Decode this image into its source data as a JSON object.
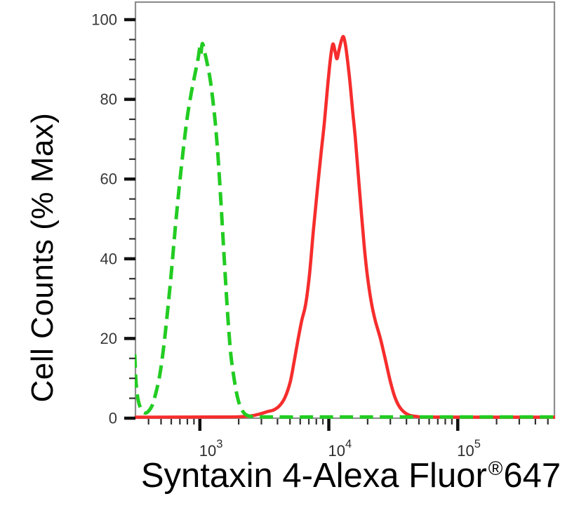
{
  "figure": {
    "background_color": "#ffffff",
    "frame_color": "#8d8d8d",
    "major_tick_color": "#101010",
    "minor_tick_color": "#303030",
    "tick_label_color": "#383838",
    "title_color": "#000000"
  },
  "chart_data": {
    "type": "line",
    "subtype": "flow-cytometry-histogram-overlay",
    "title": "",
    "xlabel": "Syntaxin 4-Alexa Fluor®647",
    "xlabel_parts": {
      "main": "Syntaxin 4-Alexa Fluor",
      "registered": "®",
      "suffix": "647"
    },
    "ylabel": "Cell Counts (% Max)",
    "x_scale": "log10",
    "xlim_log10": [
      2.495,
      5.755
    ],
    "ylim": [
      0,
      100
    ],
    "grid": false,
    "legend": "none",
    "x_major_ticks": [
      {
        "log10": 3,
        "base": "10",
        "exponent": "3"
      },
      {
        "log10": 4,
        "base": "10",
        "exponent": "4"
      },
      {
        "log10": 5,
        "base": "10",
        "exponent": "5"
      }
    ],
    "y_major_ticks": [
      {
        "value": 0,
        "label": "0"
      },
      {
        "value": 20,
        "label": "20"
      },
      {
        "value": 40,
        "label": "40"
      },
      {
        "value": 60,
        "label": "60"
      },
      {
        "value": 80,
        "label": "80"
      },
      {
        "value": 100,
        "label": "100"
      }
    ],
    "y_minor_step": 5,
    "series": [
      {
        "id": "green-dashed-histogram",
        "color": "#22cc22",
        "line_style": "dashed",
        "line_width": 5,
        "peak_log10x": 3.02,
        "peak_percent": 94,
        "points_log10x_percent": [
          [
            2.495,
            16
          ],
          [
            2.505,
            9
          ],
          [
            2.52,
            4.8
          ],
          [
            2.545,
            2.2
          ],
          [
            2.575,
            1.3
          ],
          [
            2.6,
            1.7
          ],
          [
            2.63,
            3.2
          ],
          [
            2.66,
            6.5
          ],
          [
            2.69,
            11
          ],
          [
            2.72,
            18
          ],
          [
            2.75,
            27
          ],
          [
            2.78,
            37
          ],
          [
            2.81,
            48
          ],
          [
            2.84,
            58
          ],
          [
            2.87,
            67
          ],
          [
            2.9,
            75
          ],
          [
            2.93,
            81
          ],
          [
            2.96,
            86
          ],
          [
            2.985,
            90
          ],
          [
            3.0,
            93
          ],
          [
            3.008,
            91.5
          ],
          [
            3.02,
            94
          ],
          [
            3.04,
            91.5
          ],
          [
            3.06,
            88.5
          ],
          [
            3.08,
            85
          ],
          [
            3.1,
            80
          ],
          [
            3.12,
            74
          ],
          [
            3.14,
            66
          ],
          [
            3.16,
            56
          ],
          [
            3.18,
            45
          ],
          [
            3.2,
            34
          ],
          [
            3.22,
            24
          ],
          [
            3.24,
            16
          ],
          [
            3.265,
            10
          ],
          [
            3.29,
            5.5
          ],
          [
            3.315,
            2.8
          ],
          [
            3.345,
            1.2
          ],
          [
            3.38,
            0.55
          ],
          [
            3.43,
            0.35
          ],
          [
            3.6,
            0.3
          ],
          [
            4.0,
            0.3
          ],
          [
            4.4,
            0.3
          ],
          [
            4.8,
            0.3
          ],
          [
            5.2,
            0.3
          ],
          [
            5.755,
            0.3
          ]
        ]
      },
      {
        "id": "red-solid-histogram",
        "color": "#f62d2d",
        "line_style": "solid",
        "line_width": 4.6,
        "peak_log10x": 4.114,
        "peak_percent": 95.7,
        "points_log10x_percent": [
          [
            2.495,
            0.25
          ],
          [
            2.9,
            0.28
          ],
          [
            3.1,
            0.3
          ],
          [
            3.3,
            0.35
          ],
          [
            3.4,
            0.6
          ],
          [
            3.47,
            1.1
          ],
          [
            3.53,
            1.7
          ],
          [
            3.575,
            2.1
          ],
          [
            3.62,
            3.2
          ],
          [
            3.66,
            5.2
          ],
          [
            3.7,
            9
          ],
          [
            3.73,
            14
          ],
          [
            3.76,
            19.5
          ],
          [
            3.79,
            24.5
          ],
          [
            3.82,
            28.5
          ],
          [
            3.85,
            36
          ],
          [
            3.88,
            47
          ],
          [
            3.91,
            57
          ],
          [
            3.94,
            66.5
          ],
          [
            3.965,
            74
          ],
          [
            3.99,
            83
          ],
          [
            4.01,
            89.5
          ],
          [
            4.026,
            93.2
          ],
          [
            4.036,
            93.8
          ],
          [
            4.05,
            91.8
          ],
          [
            4.063,
            90.2
          ],
          [
            4.078,
            92.2
          ],
          [
            4.098,
            94.8
          ],
          [
            4.114,
            95.7
          ],
          [
            4.13,
            93.5
          ],
          [
            4.148,
            89
          ],
          [
            4.165,
            84
          ],
          [
            4.185,
            77
          ],
          [
            4.205,
            70.5
          ],
          [
            4.225,
            62.5
          ],
          [
            4.25,
            52.5
          ],
          [
            4.275,
            43
          ],
          [
            4.3,
            35.5
          ],
          [
            4.33,
            29
          ],
          [
            4.36,
            24.5
          ],
          [
            4.4,
            20
          ],
          [
            4.44,
            14.5
          ],
          [
            4.475,
            9.5
          ],
          [
            4.51,
            5.5
          ],
          [
            4.545,
            3
          ],
          [
            4.585,
            1.5
          ],
          [
            4.63,
            0.7
          ],
          [
            4.69,
            0.4
          ],
          [
            4.76,
            0.28
          ],
          [
            5.2,
            0.25
          ],
          [
            5.755,
            0.25
          ]
        ]
      }
    ]
  }
}
